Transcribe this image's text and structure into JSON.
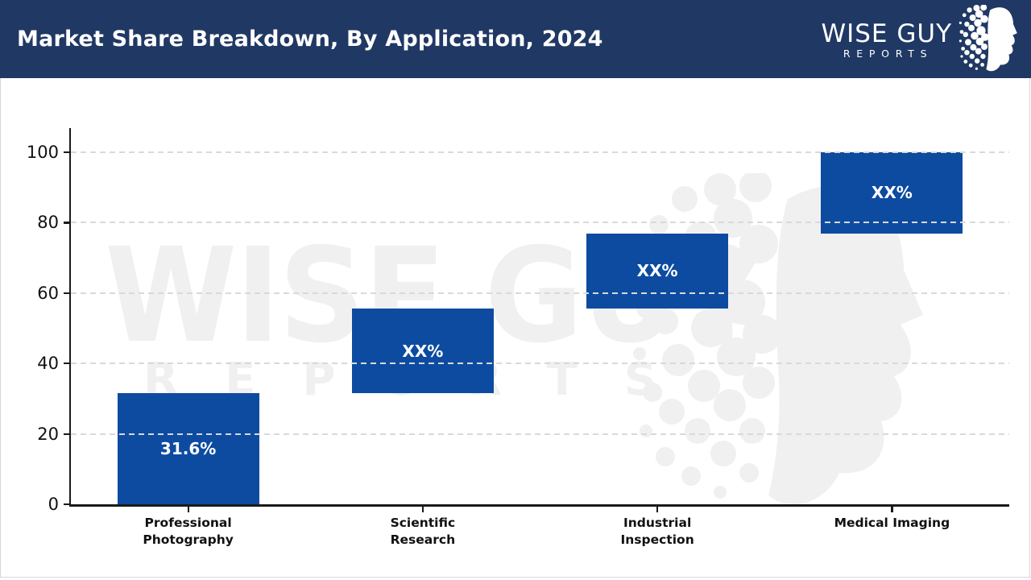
{
  "header": {
    "title": "Market Share Breakdown, By Application, 2024",
    "logo": {
      "line1": "WISE GUY",
      "line2": "REPORTS"
    }
  },
  "watermark": {
    "line1": "WISE GUY",
    "line2": "REPORTS"
  },
  "colors": {
    "header_bg": "#203864",
    "bar": "#0d4ba1",
    "bar_label": "#ffffff",
    "grid": "#d9d9d9",
    "axis": "#1a1a1a",
    "watermark": "#f0f0f1"
  },
  "chart_data": {
    "type": "bar",
    "subtype": "waterfall",
    "title": "Market Share Breakdown, By Application, 2024",
    "categories": [
      [
        "Professional",
        "Photography"
      ],
      [
        "Scientific",
        "Research"
      ],
      [
        "Industrial",
        "Inspection"
      ],
      [
        "Medical Imaging"
      ]
    ],
    "segments": [
      {
        "category": "Professional Photography",
        "start": 0,
        "end": 31.6,
        "label": "31.6%"
      },
      {
        "category": "Scientific Research",
        "start": 31.6,
        "end": 55.5,
        "label": "XX%"
      },
      {
        "category": "Industrial Inspection",
        "start": 55.5,
        "end": 77.0,
        "label": "XX%"
      },
      {
        "category": "Medical Imaging",
        "start": 77.0,
        "end": 100,
        "label": "XX%"
      }
    ],
    "ylim": [
      0,
      100
    ],
    "yticks": [
      0,
      20,
      40,
      60,
      80,
      100
    ],
    "grid": "horizontal-dashed",
    "legend": "none"
  }
}
